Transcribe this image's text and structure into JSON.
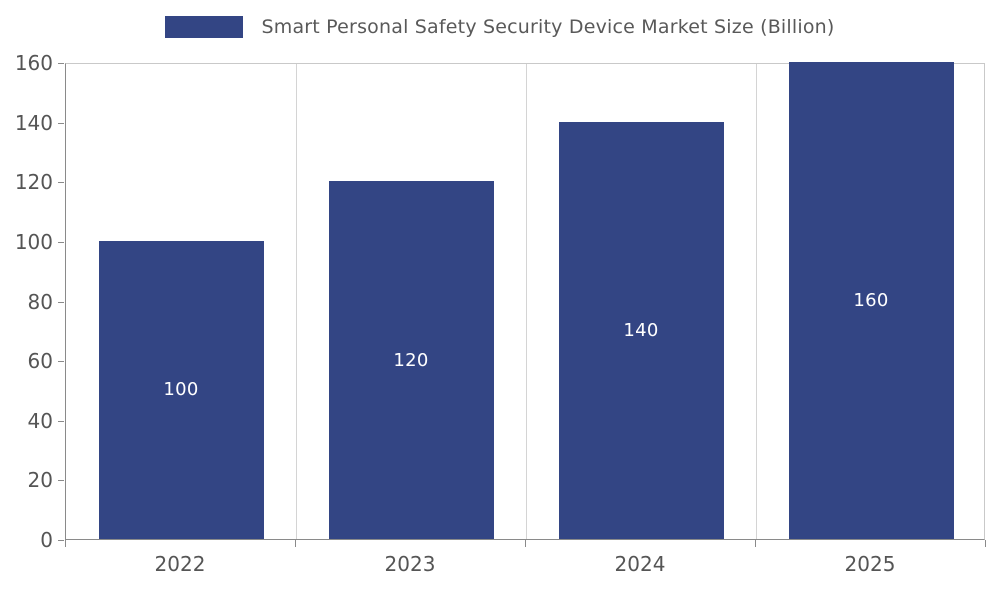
{
  "chart_data": {
    "type": "bar",
    "title": "Smart Personal Safety Security Device Market Size (Billion)",
    "categories": [
      "2022",
      "2023",
      "2024",
      "2025"
    ],
    "values": [
      100,
      120,
      140,
      160
    ],
    "bar_labels": [
      "100",
      "120",
      "140",
      "160"
    ],
    "xlabel": "",
    "ylabel": "",
    "ylim": [
      0,
      160
    ],
    "ytick_step": 20,
    "ytick_labels": [
      "0",
      "20",
      "40",
      "60",
      "80",
      "100",
      "120",
      "140",
      "160"
    ],
    "grid": "vertical-category-separators",
    "legend_position": "top-center"
  },
  "colors": {
    "bar": "#334584",
    "bar_label": "#ffffff",
    "legend_text": "#595959",
    "tick_text": "#555555",
    "grid_line": "#d4d4d4",
    "axis_line": "#8a8a8a"
  }
}
